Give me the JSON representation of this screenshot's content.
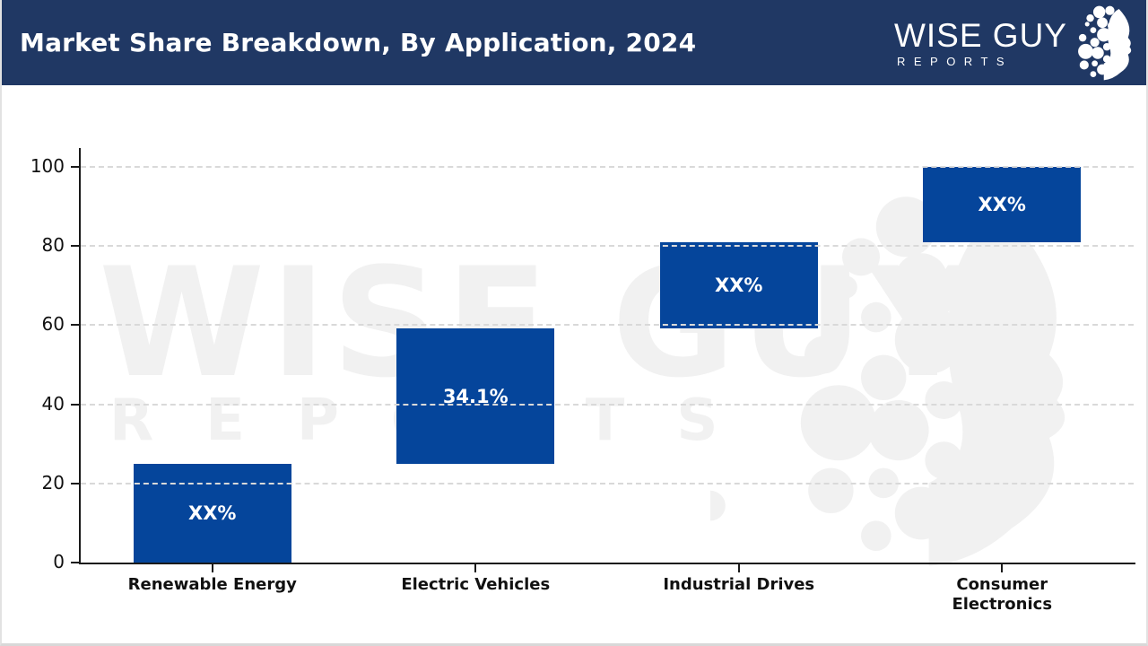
{
  "header": {
    "title": "Market Share Breakdown, By Application, 2024",
    "logo": {
      "line1": "WISE GUY",
      "line2": "REPORTS"
    }
  },
  "watermark": {
    "line1": "WISE GUY",
    "line2": "REPORTS"
  },
  "colors": {
    "header_bg": "#203864",
    "bar_fill": "#05459B",
    "grid_line": "#d9d9d9",
    "axis": "#1a1a1a",
    "bar_label_text": "#ffffff",
    "watermark": "#f1f1f1"
  },
  "chart_data": {
    "type": "bar",
    "subtype": "floating-waterfall",
    "title": "Market Share Breakdown, By Application, 2024",
    "categories": [
      "Renewable Energy",
      "Electric Vehicles",
      "Industrial Drives",
      "Consumer\nElectronics"
    ],
    "series": [
      {
        "name": "Market Share (%)",
        "segments": [
          {
            "category": "Renewable Energy",
            "start": 0,
            "end": 25,
            "label": "XX%"
          },
          {
            "category": "Electric Vehicles",
            "start": 25,
            "end": 59.1,
            "label": "34.1%"
          },
          {
            "category": "Industrial Drives",
            "start": 59.1,
            "end": 81,
            "label": "XX%"
          },
          {
            "category": "Consumer Electronics",
            "start": 81,
            "end": 100,
            "label": "XX%"
          }
        ]
      }
    ],
    "xlabel": "",
    "ylabel": "",
    "ylim": [
      0,
      100
    ],
    "yticks": [
      0,
      20,
      40,
      60,
      80,
      100
    ],
    "grid": "horizontal-dashed",
    "legend": "none"
  }
}
